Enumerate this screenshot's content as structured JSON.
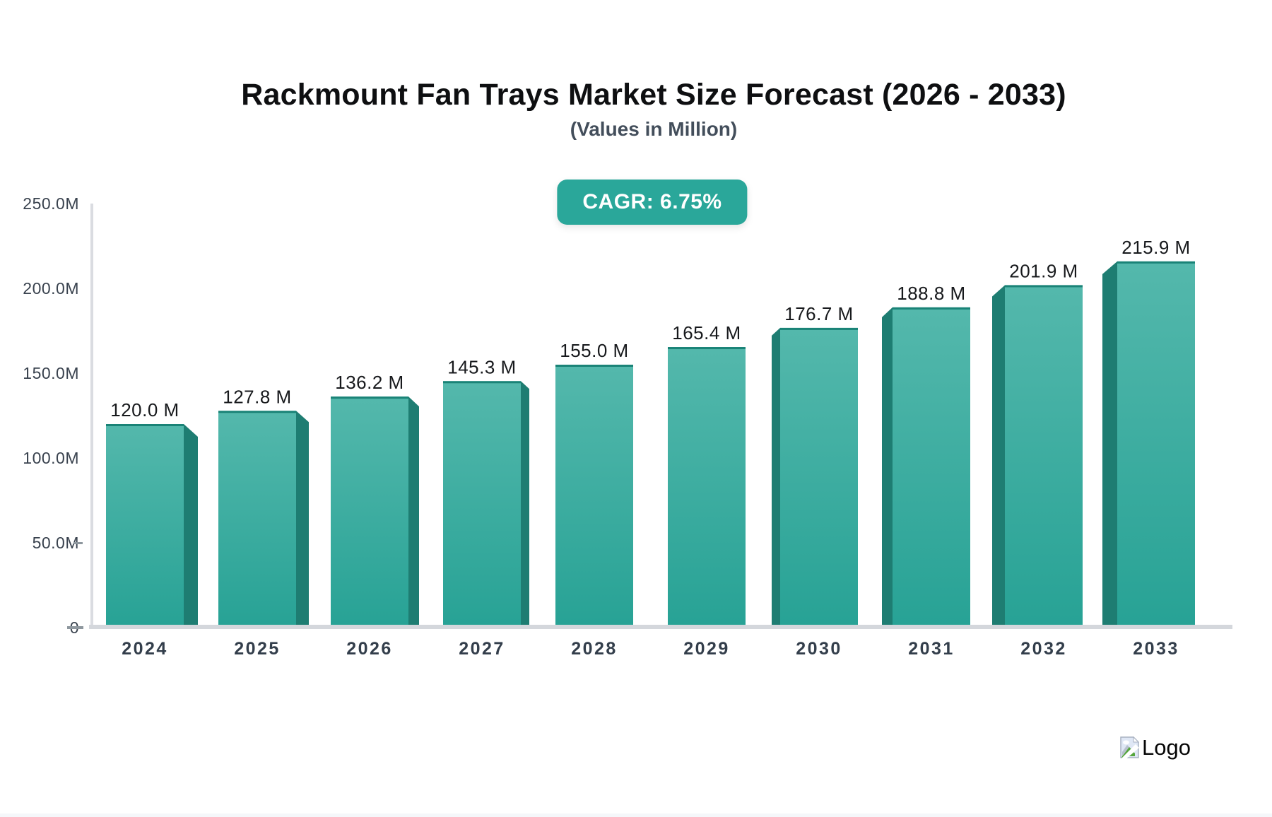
{
  "header": {
    "title": "Rackmount Fan Trays Market Size Forecast (2026 - 2033)",
    "subtitle": "(Values in Million)",
    "cagr_badge": "CAGR: 6.75%"
  },
  "chart_data": {
    "type": "bar",
    "title": "Rackmount Fan Trays Market Size Forecast (2026 - 2033)",
    "subtitle": "(Values in Million)",
    "annotation": "CAGR: 6.75%",
    "categories": [
      "2024",
      "2025",
      "2026",
      "2027",
      "2028",
      "2029",
      "2030",
      "2031",
      "2032",
      "2033"
    ],
    "values": [
      120.0,
      127.8,
      136.2,
      145.3,
      155.0,
      165.4,
      176.7,
      188.8,
      201.9,
      215.9
    ],
    "value_labels": [
      "120.0 M",
      "127.8 M",
      "136.2 M",
      "145.3 M",
      "155.0 M",
      "165.4 M",
      "176.7 M",
      "188.8 M",
      "201.9 M",
      "215.9 M"
    ],
    "unit": "Million",
    "y_tick_labels": [
      "250.0M",
      "200.0M",
      "150.0M",
      "100.0M",
      "50.0M",
      "0"
    ],
    "ylim": [
      0,
      250
    ],
    "grid": false,
    "legend": false,
    "colors": {
      "bar_top": "#54b8ac",
      "bar_bottom": "#27a295",
      "bar_side": "#1e7d72",
      "bar_top_edge": "#1a8377",
      "axis_line": "#dadce1",
      "baseline": "#d4d7dc",
      "tick": "#8e979e",
      "badge": "#2aa79a"
    }
  },
  "footer": {
    "logo_alt": "Logo"
  }
}
